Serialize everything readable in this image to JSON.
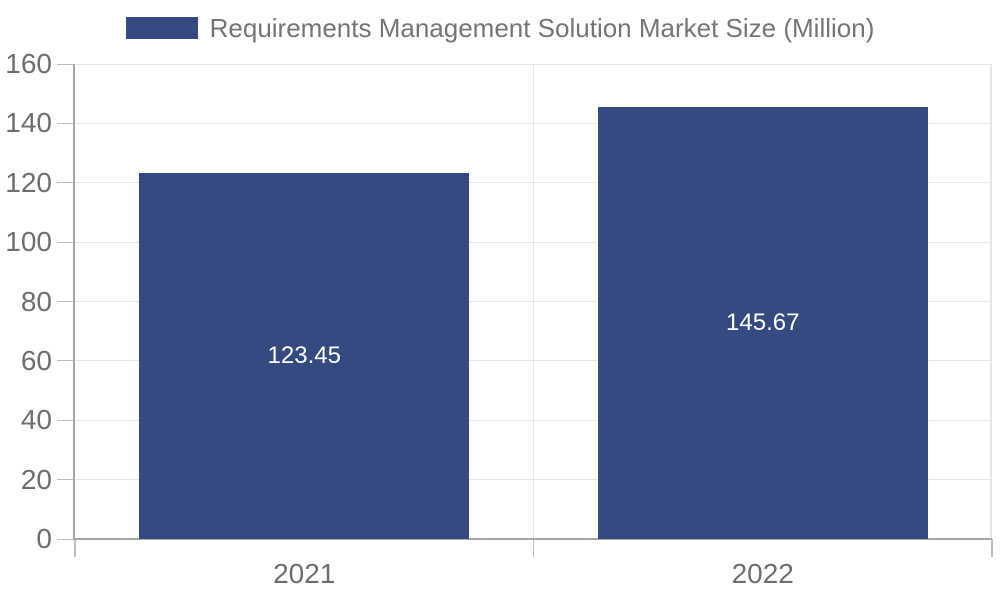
{
  "chart_data": {
    "type": "bar",
    "title": "Requirements Management Solution Market Size (Million)",
    "categories": [
      "2021",
      "2022"
    ],
    "values": [
      123.45,
      145.67
    ],
    "value_labels": [
      "123.45",
      "145.67"
    ],
    "ylim": [
      0,
      160
    ],
    "yticks": [
      0,
      20,
      40,
      60,
      80,
      100,
      120,
      140,
      160
    ],
    "grid": true,
    "legend_position": "top",
    "colors": {
      "bar": "#364a82",
      "bar_value_text": "#ffffff",
      "axis_text": "#6e6e6e",
      "legend_text": "#757575",
      "grid_line": "#e6e6e6",
      "axis_line": "#a6a6a6",
      "tick_line": "#bdbdbd"
    }
  }
}
